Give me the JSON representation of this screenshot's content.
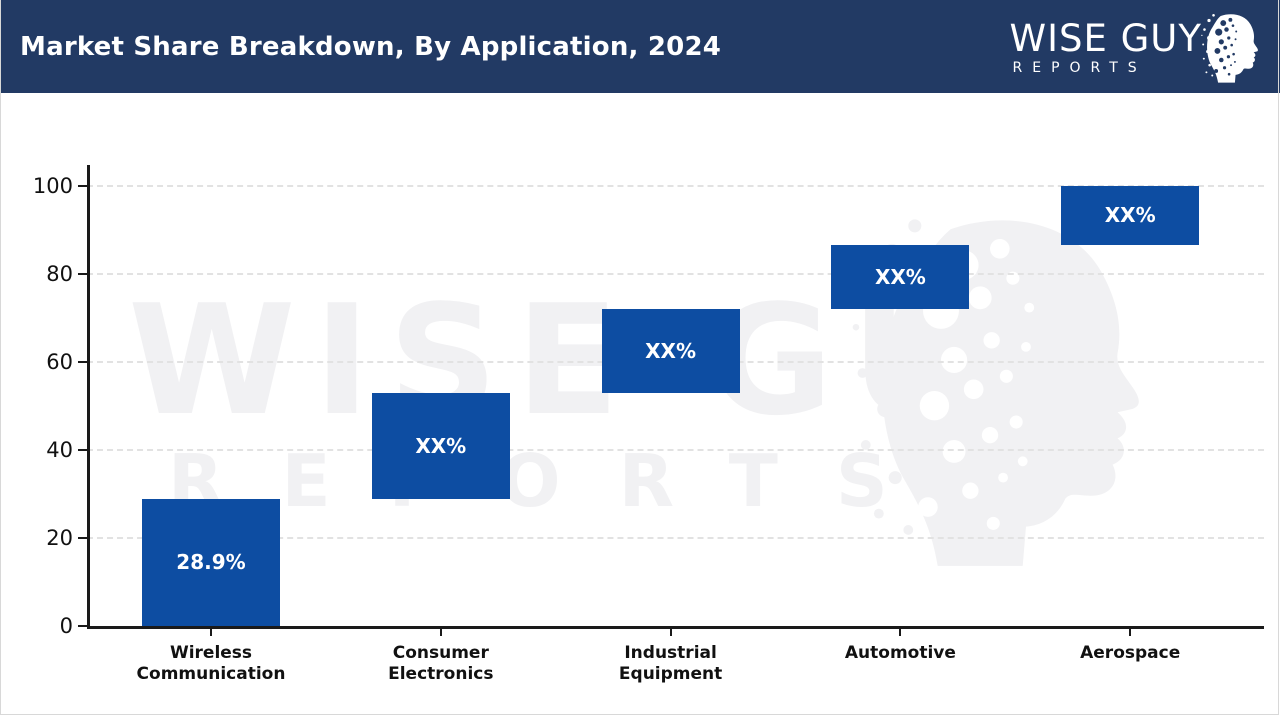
{
  "header": {
    "title": "Market Share Breakdown, By Application, 2024",
    "logo": {
      "brand_top": "WISE GUY",
      "brand_bottom": "REPORTS"
    }
  },
  "watermark": {
    "brand_top": "WISE GUY",
    "brand_bottom": "REPORTS"
  },
  "colors": {
    "header_bg": "#223A64",
    "bar": "#0D4DA2",
    "bar_label": "#FFFFFF",
    "grid": "#E2E2E2",
    "axis": "#1A1A1A",
    "tick_text": "#111111",
    "watermark": "#F1F1F3",
    "frame_border": "#D8D8D8"
  },
  "chart_data": {
    "type": "bar",
    "subtype": "waterfall",
    "title": "Market Share Breakdown, By Application, 2024",
    "xlabel": "",
    "ylabel": "",
    "ylim": [
      0,
      100
    ],
    "yticks": [
      0,
      20,
      40,
      60,
      80,
      100
    ],
    "grid": "horizontal-dashed",
    "legend": "none",
    "categories": [
      [
        "Wireless",
        "Communication"
      ],
      [
        "Consumer",
        "Electronics"
      ],
      [
        "Industrial",
        "Equipment"
      ],
      [
        "Automotive"
      ],
      [
        "Aerospace"
      ]
    ],
    "segments": [
      {
        "category": "Wireless Communication",
        "start": 0,
        "end": 28.9,
        "value": 28.9,
        "label": "28.9%"
      },
      {
        "category": "Consumer Electronics",
        "start": 28.9,
        "end": 53.0,
        "value": 24.1,
        "label": "XX%"
      },
      {
        "category": "Industrial Equipment",
        "start": 53.0,
        "end": 72.0,
        "value": 19.0,
        "label": "XX%"
      },
      {
        "category": "Automotive",
        "start": 72.0,
        "end": 86.6,
        "value": 14.6,
        "label": "XX%"
      },
      {
        "category": "Aerospace",
        "start": 86.6,
        "end": 100.0,
        "value": 13.4,
        "label": "XX%"
      }
    ]
  }
}
